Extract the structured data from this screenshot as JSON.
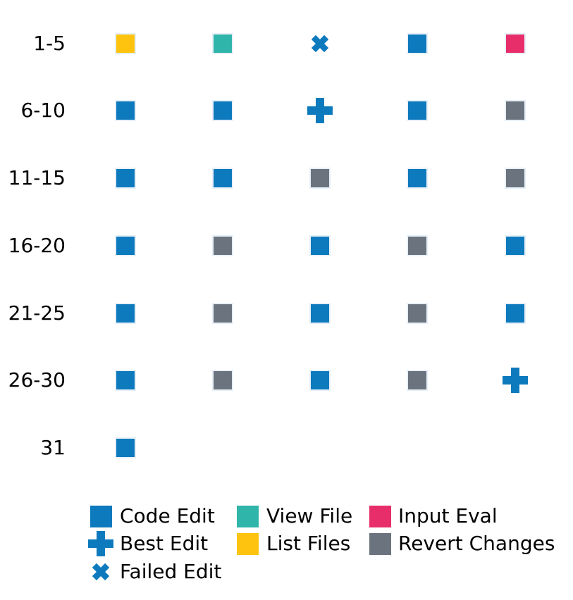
{
  "colors": {
    "background": "#ffffff",
    "text": "#000000",
    "marker_edge": "#e7f0f8",
    "blue": "#0d7abd",
    "teal": "#2fb5a9",
    "yellow": "#fdc30e",
    "pink": "#e72e6a",
    "gray": "#6b747e"
  },
  "chart_data": {
    "type": "scatter",
    "title": "",
    "xlabel": "",
    "ylabel": "",
    "grid": false,
    "row_categories": [
      "1-5",
      "6-10",
      "11-15",
      "16-20",
      "21-25",
      "26-30",
      "31"
    ],
    "columns_per_row": 5,
    "rows": [
      {
        "label": "1-5",
        "steps": [
          "List Files",
          "View File",
          "Failed Edit",
          "Code Edit",
          "Input Eval"
        ]
      },
      {
        "label": "6-10",
        "steps": [
          "Code Edit",
          "Code Edit",
          "Best Edit",
          "Code Edit",
          "Revert Changes"
        ]
      },
      {
        "label": "11-15",
        "steps": [
          "Code Edit",
          "Code Edit",
          "Revert Changes",
          "Code Edit",
          "Revert Changes"
        ]
      },
      {
        "label": "16-20",
        "steps": [
          "Code Edit",
          "Revert Changes",
          "Code Edit",
          "Revert Changes",
          "Code Edit"
        ]
      },
      {
        "label": "21-25",
        "steps": [
          "Code Edit",
          "Revert Changes",
          "Code Edit",
          "Revert Changes",
          "Code Edit"
        ]
      },
      {
        "label": "26-30",
        "steps": [
          "Code Edit",
          "Revert Changes",
          "Code Edit",
          "Revert Changes",
          "Best Edit"
        ]
      },
      {
        "label": "31",
        "steps": [
          "Code Edit"
        ]
      }
    ],
    "legend": [
      {
        "label": "Code Edit",
        "marker": "square",
        "color": "#0d7abd"
      },
      {
        "label": "Best Edit",
        "marker": "plus",
        "color": "#0d7abd"
      },
      {
        "label": "Failed Edit",
        "marker": "x",
        "color": "#0d7abd"
      },
      {
        "label": "View File",
        "marker": "square",
        "color": "#2fb5a9"
      },
      {
        "label": "List Files",
        "marker": "square",
        "color": "#fdc30e"
      },
      {
        "label": "Input Eval",
        "marker": "square",
        "color": "#e72e6a"
      },
      {
        "label": "Revert Changes",
        "marker": "square",
        "color": "#6b747e"
      }
    ],
    "legend_position": "bottom",
    "legend_columns": [
      [
        0,
        1,
        2
      ],
      [
        3,
        4
      ],
      [
        5,
        6
      ]
    ]
  }
}
